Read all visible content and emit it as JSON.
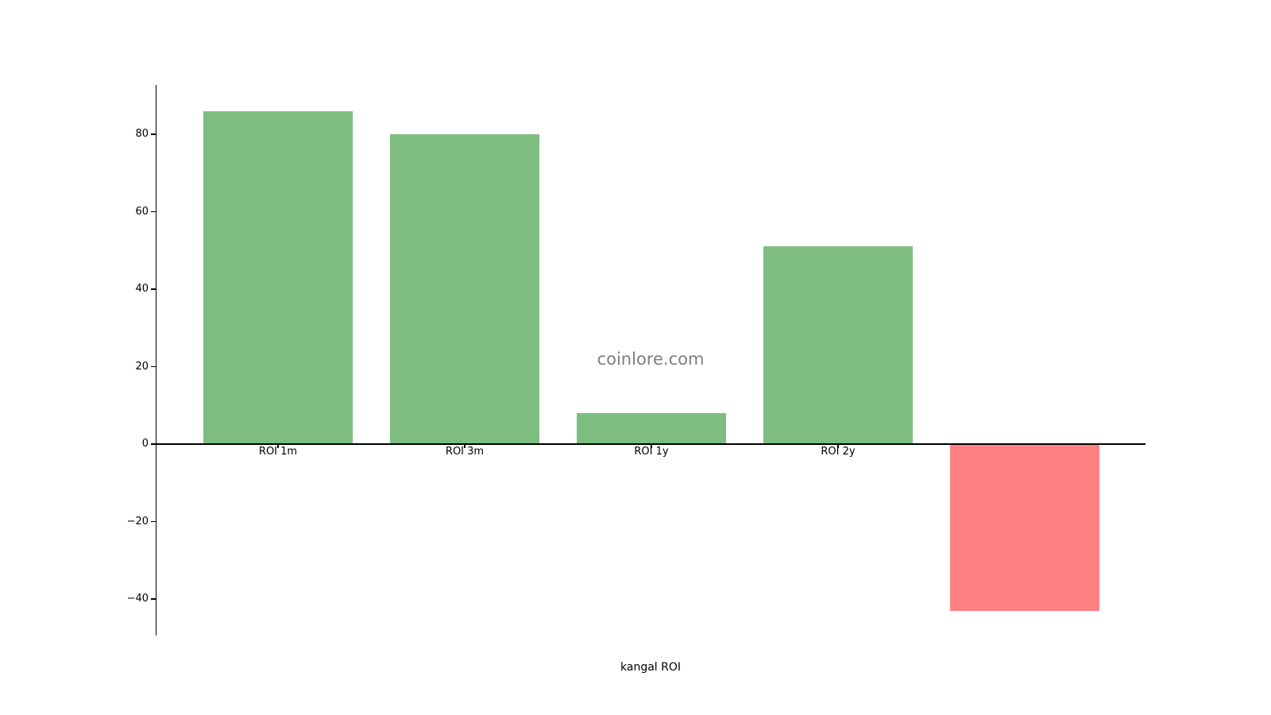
{
  "watermark": {
    "text": "coinlore.com",
    "color": "#7f7f7f"
  },
  "chart_data": {
    "type": "bar",
    "title": "",
    "xlabel": "kangal ROI",
    "ylabel": "",
    "categories": [
      "ROI 1m",
      "ROI 3m",
      "ROI 1y",
      "ROI 2y",
      ""
    ],
    "values": [
      86,
      80,
      8,
      51,
      -43
    ],
    "bar_colors": [
      "#7dbe80",
      "#7dbe80",
      "#7dbe80",
      "#7dbe80",
      "#ff8080"
    ],
    "positive_color": "#7dbe80",
    "negative_color": "#ff8080",
    "yticks": [
      80,
      60,
      40,
      20,
      0,
      -20,
      -40
    ],
    "ylim": [
      -49.5,
      92.7
    ],
    "grid": false,
    "legend_position": "none",
    "axis_color": "#000000",
    "tick_label_color": "#000000"
  }
}
